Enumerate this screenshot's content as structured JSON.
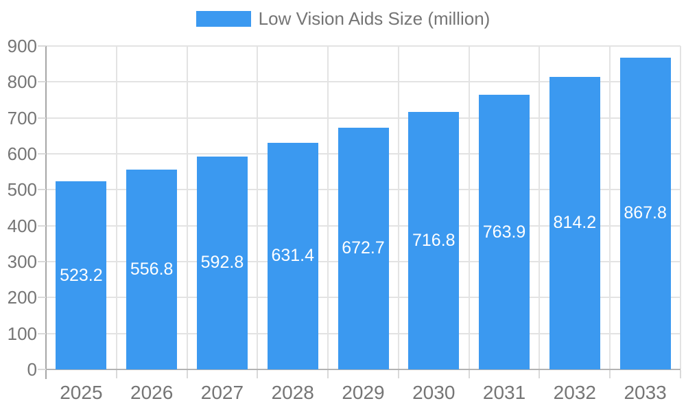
{
  "legend": {
    "label": "Low Vision Aids Size (million)",
    "swatch_color": "#3b99f0"
  },
  "chart_data": {
    "type": "bar",
    "title": "",
    "categories": [
      "2025",
      "2026",
      "2027",
      "2028",
      "2029",
      "2030",
      "2031",
      "2032",
      "2033"
    ],
    "series": [
      {
        "name": "Low Vision Aids Size (million)",
        "values": [
          523.2,
          556.8,
          592.8,
          631.4,
          672.7,
          716.8,
          763.9,
          814.2,
          867.8
        ]
      }
    ],
    "value_labels": [
      "523.2",
      "556.8",
      "592.8",
      "631.4",
      "672.7",
      "716.8",
      "763.9",
      "814.2",
      "867.8"
    ],
    "ylim": [
      0,
      900
    ],
    "y_ticks": [
      0,
      100,
      200,
      300,
      400,
      500,
      600,
      700,
      800,
      900
    ],
    "grid": true,
    "legend_position": "top-center",
    "colors": {
      "bar": "#3b99f0",
      "value_label": "#ffffff",
      "axis_label": "#757575",
      "gridline": "#e3e3e3",
      "axis_line": "#a6a6a6"
    }
  }
}
